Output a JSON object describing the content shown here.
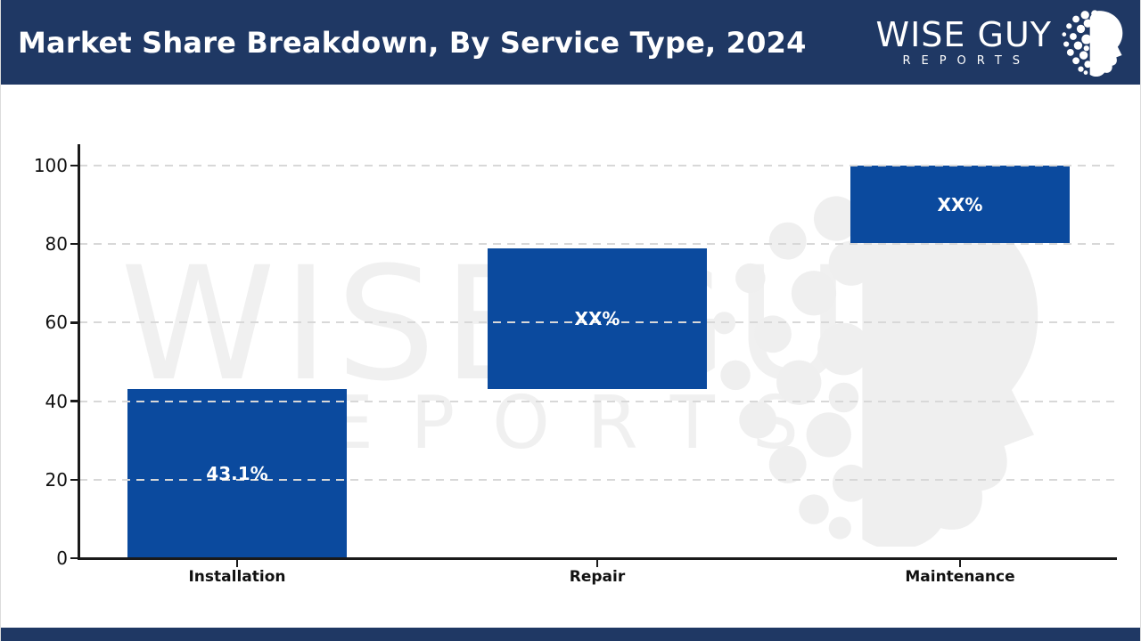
{
  "header": {
    "title": "Market Share Breakdown, By Service Type, 2024",
    "logo": {
      "line1": "WISE GUY",
      "line2": "REPORTS"
    }
  },
  "watermark": {
    "line1": "WISE GUY",
    "line2": "REPORTS"
  },
  "colors": {
    "header_bg": "#1f3864",
    "footer_bg": "#1f3864",
    "bar": "#0b4a9e",
    "gridline": "#d8d8d8",
    "axis": "#1a1a1a",
    "watermark": "#efefef",
    "title_text": "#ffffff",
    "bar_label_text": "#ffffff"
  },
  "chart_data": {
    "type": "bar",
    "subtype": "waterfall",
    "title": "Market Share Breakdown, By Service Type, 2024",
    "categories": [
      "Installation",
      "Repair",
      "Maintenance"
    ],
    "segments": [
      {
        "category": "Installation",
        "start": 0,
        "end": 43.1,
        "label": "43.1%"
      },
      {
        "category": "Repair",
        "start": 43.1,
        "end": 78.9,
        "label": "XX%"
      },
      {
        "category": "Maintenance",
        "start": 80.2,
        "end": 100,
        "label": "XX%"
      }
    ],
    "yticks": [
      0,
      20,
      40,
      60,
      80,
      100
    ],
    "ylim": [
      0,
      105
    ],
    "xlabel": "",
    "ylabel": "",
    "grid": "horizontal-dashed",
    "legend": "none",
    "bar_color": "#0b4a9e"
  }
}
